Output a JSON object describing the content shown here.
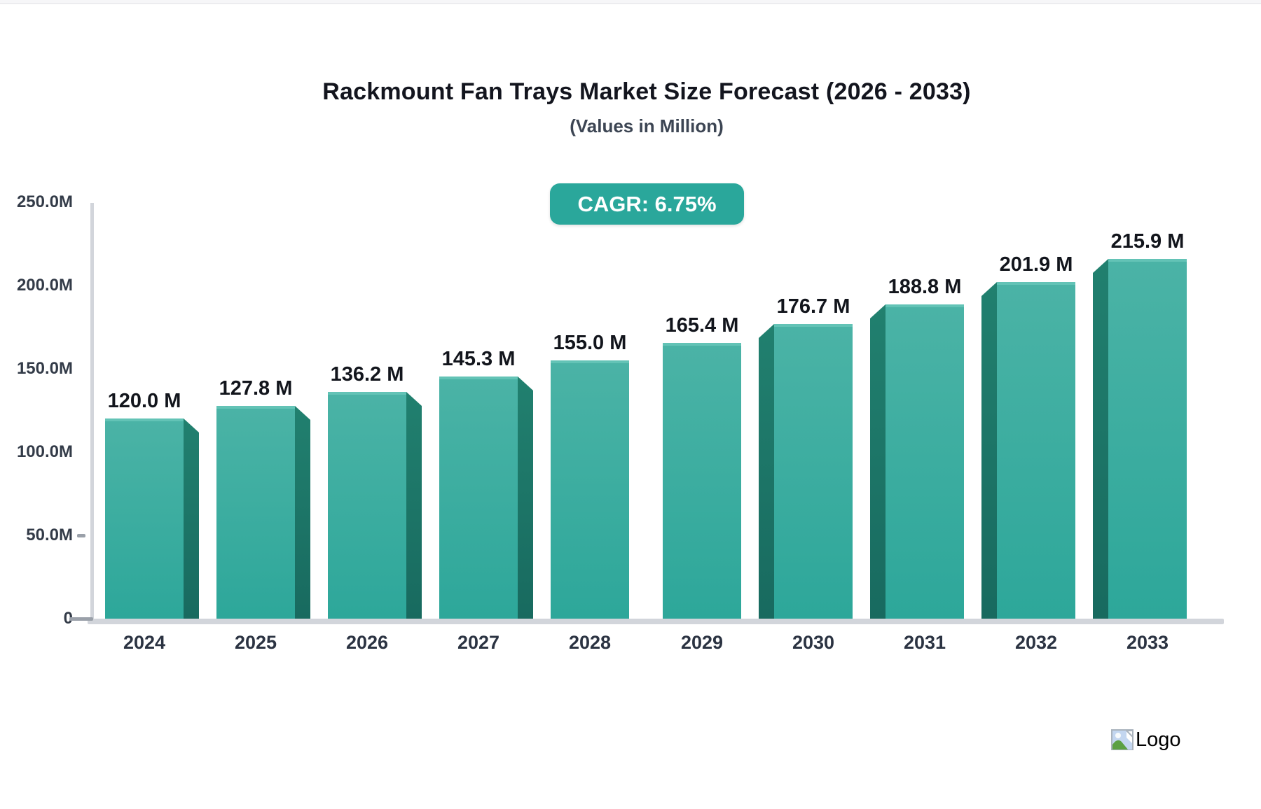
{
  "header": {
    "title": "Rackmount Fan Trays Market Size Forecast (2026 - 2033)",
    "subtitle": "(Values in Million)"
  },
  "badge": {
    "label": "CAGR: 6.75%",
    "color": "#2aa79b"
  },
  "chart_data": {
    "type": "bar",
    "title": "Rackmount Fan Trays Market Size Forecast (2026 - 2033)",
    "subtitle": "(Values in Million)",
    "categories": [
      "2024",
      "2025",
      "2026",
      "2027",
      "2028",
      "2029",
      "2030",
      "2031",
      "2032",
      "2033"
    ],
    "values": [
      120.0,
      127.8,
      136.2,
      145.3,
      155.0,
      165.4,
      176.7,
      188.8,
      201.9,
      215.9
    ],
    "value_labels": [
      "120.0 M",
      "127.8 M",
      "136.2 M",
      "145.3 M",
      "155.0 M",
      "165.4 M",
      "176.7 M",
      "188.8 M",
      "201.9 M",
      "215.9 M"
    ],
    "ylim": [
      0,
      250
    ],
    "yticks": [
      {
        "value": 250,
        "label": "250.0M"
      },
      {
        "value": 200,
        "label": "200.0M"
      },
      {
        "value": 150,
        "label": "150.0M"
      },
      {
        "value": 100,
        "label": "100.0M"
      },
      {
        "value": 50,
        "label": "50.0M"
      },
      {
        "value": 0,
        "label": "0"
      }
    ],
    "grid": "off",
    "legend": "none",
    "bar_3d_sides": [
      "right",
      "right",
      "right",
      "right",
      "none",
      "none",
      "left",
      "left",
      "left",
      "left"
    ],
    "colors": {
      "body_top": "#4bb3a6",
      "body_bottom": "#2da79a",
      "top_edge": "#63c3b6",
      "side_top": "#21806f",
      "side_bottom": "#186a5f"
    }
  },
  "footer": {
    "logo_alt": "Logo"
  }
}
